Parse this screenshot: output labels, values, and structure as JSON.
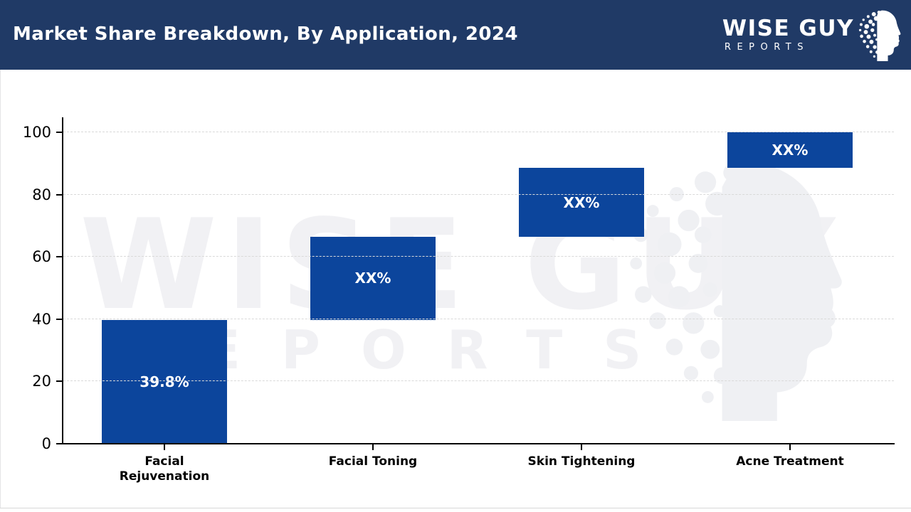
{
  "header": {
    "bg_color": "#203a66",
    "title": "Market Share Breakdown, By Application, 2024",
    "logo": {
      "wordmark": "WISE GUY",
      "subtext": "REPORTS"
    }
  },
  "watermark": {
    "line1": "WISE GUY",
    "line2": "REPORTS"
  },
  "chart_data": {
    "type": "bar",
    "subtype": "waterfall",
    "title": "Market Share Breakdown, By Application, 2024",
    "categories": [
      "Facial\nRejuvenation",
      "Facial Toning",
      "Skin Tightening",
      "Acne Treatment"
    ],
    "segments": [
      {
        "category": "Facial Rejuvenation",
        "start": 0,
        "end": 39.8,
        "label": "39.8%"
      },
      {
        "category": "Facial Toning",
        "start": 39.8,
        "end": 66.5,
        "label": "XX%"
      },
      {
        "category": "Skin Tightening",
        "start": 66.5,
        "end": 88.5,
        "label": "XX%"
      },
      {
        "category": "Acne Treatment",
        "start": 88.5,
        "end": 100,
        "label": "XX%"
      }
    ],
    "ylim": [
      0,
      100
    ],
    "yticks": [
      0,
      20,
      40,
      60,
      80,
      100
    ],
    "xlabel": "",
    "ylabel": "",
    "grid": {
      "axis": "y",
      "style": "dashed",
      "color": "#d9d9d9",
      "above_bars": true
    },
    "bar_color": "#0c459c",
    "bar_label_color": "#ffffff",
    "axis_color": "#000000",
    "legend": "none"
  }
}
